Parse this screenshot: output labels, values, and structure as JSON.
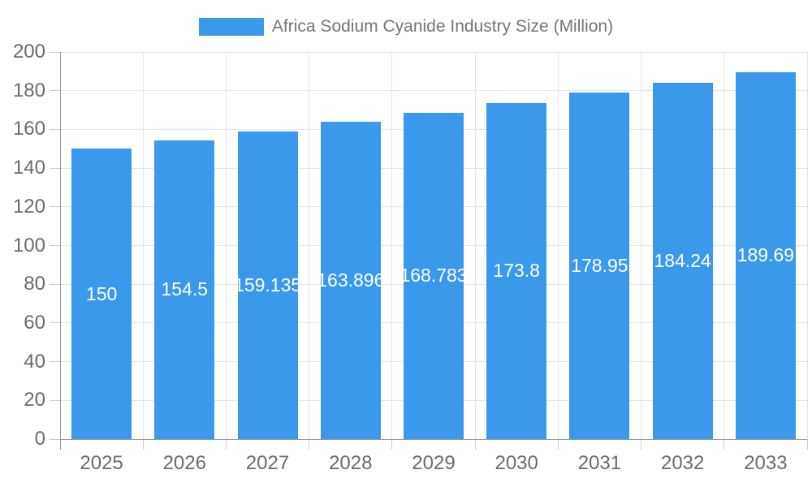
{
  "legend": {
    "label": "Africa Sodium Cyanide Industry Size (Million)"
  },
  "chart_data": {
    "type": "bar",
    "title": "Africa Sodium Cyanide Industry Size (Million)",
    "categories": [
      "2025",
      "2026",
      "2027",
      "2028",
      "2029",
      "2030",
      "2031",
      "2032",
      "2033"
    ],
    "values": [
      150,
      154.5,
      159.135,
      163.896,
      168.783,
      173.8,
      178.95,
      184.24,
      189.69
    ],
    "value_labels": [
      "150",
      "154.5",
      "159.135",
      "163.896",
      "168.783",
      "173.8",
      "178.95",
      "184.24",
      "189.69"
    ],
    "xlabel": "",
    "ylabel": "",
    "ylim": [
      0,
      200
    ],
    "ytick_step": 20,
    "yticks": [
      "0",
      "20",
      "40",
      "60",
      "80",
      "100",
      "120",
      "140",
      "160",
      "180",
      "200"
    ],
    "grid": true,
    "legend_position": "top-center"
  },
  "colors": {
    "bar": "#3B99EC",
    "grid": "#E6E6E6",
    "axis": "#999999",
    "tick": "#CCCCCC",
    "axis_text": "#6B6B6B",
    "title_text": "#757575",
    "bar_label": "#FFFFFF",
    "background": "#FFFFFF"
  }
}
